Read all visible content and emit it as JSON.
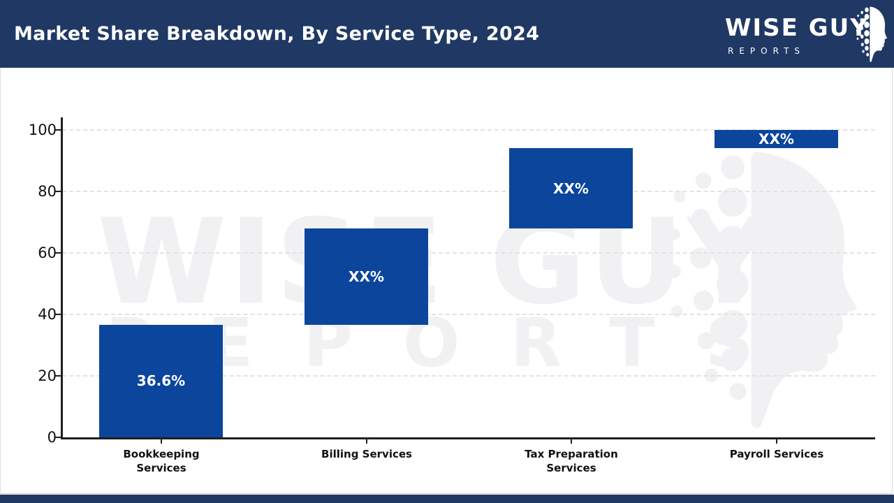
{
  "header": {
    "title": "Market Share Breakdown, By Service Type, 2024",
    "logo": {
      "line1": "WISE GUY",
      "line2": "REPORTS"
    }
  },
  "watermark": {
    "line1": "WISE GUY",
    "line2": "REPORTS"
  },
  "colors": {
    "header_bg": "#203864",
    "footer_bg": "#203864",
    "bar": "#0b459c",
    "value_label": "#ffffff",
    "grid": "#e2e2e2",
    "axis": "#1f1f1f"
  },
  "chart_data": {
    "type": "bar",
    "variant": "waterfall",
    "title": "Market Share Breakdown, By Service Type, 2024",
    "categories": [
      "Bookkeeping Services",
      "Billing Services",
      "Tax Preparation Services",
      "Payroll Services"
    ],
    "category_lines": [
      [
        "Bookkeeping",
        "Services"
      ],
      [
        "Billing Services"
      ],
      [
        "Tax Preparation",
        "Services"
      ],
      [
        "Payroll Services"
      ]
    ],
    "series": [
      {
        "name": "Market Share",
        "segments": [
          {
            "category": "Bookkeeping Services",
            "start": 0,
            "end": 36.6,
            "label": "36.6%"
          },
          {
            "category": "Billing Services",
            "start": 36.6,
            "end": 68,
            "label": "XX%"
          },
          {
            "category": "Tax Preparation Services",
            "start": 68,
            "end": 94,
            "label": "XX%"
          },
          {
            "category": "Payroll Services",
            "start": 94,
            "end": 100,
            "label": "XX%"
          }
        ]
      }
    ],
    "ylim": [
      0,
      104
    ],
    "yticks": [
      0,
      20,
      40,
      60,
      80,
      100
    ],
    "xlabel": "",
    "ylabel": "",
    "grid": "horizontal-dashed",
    "legend": "none"
  }
}
